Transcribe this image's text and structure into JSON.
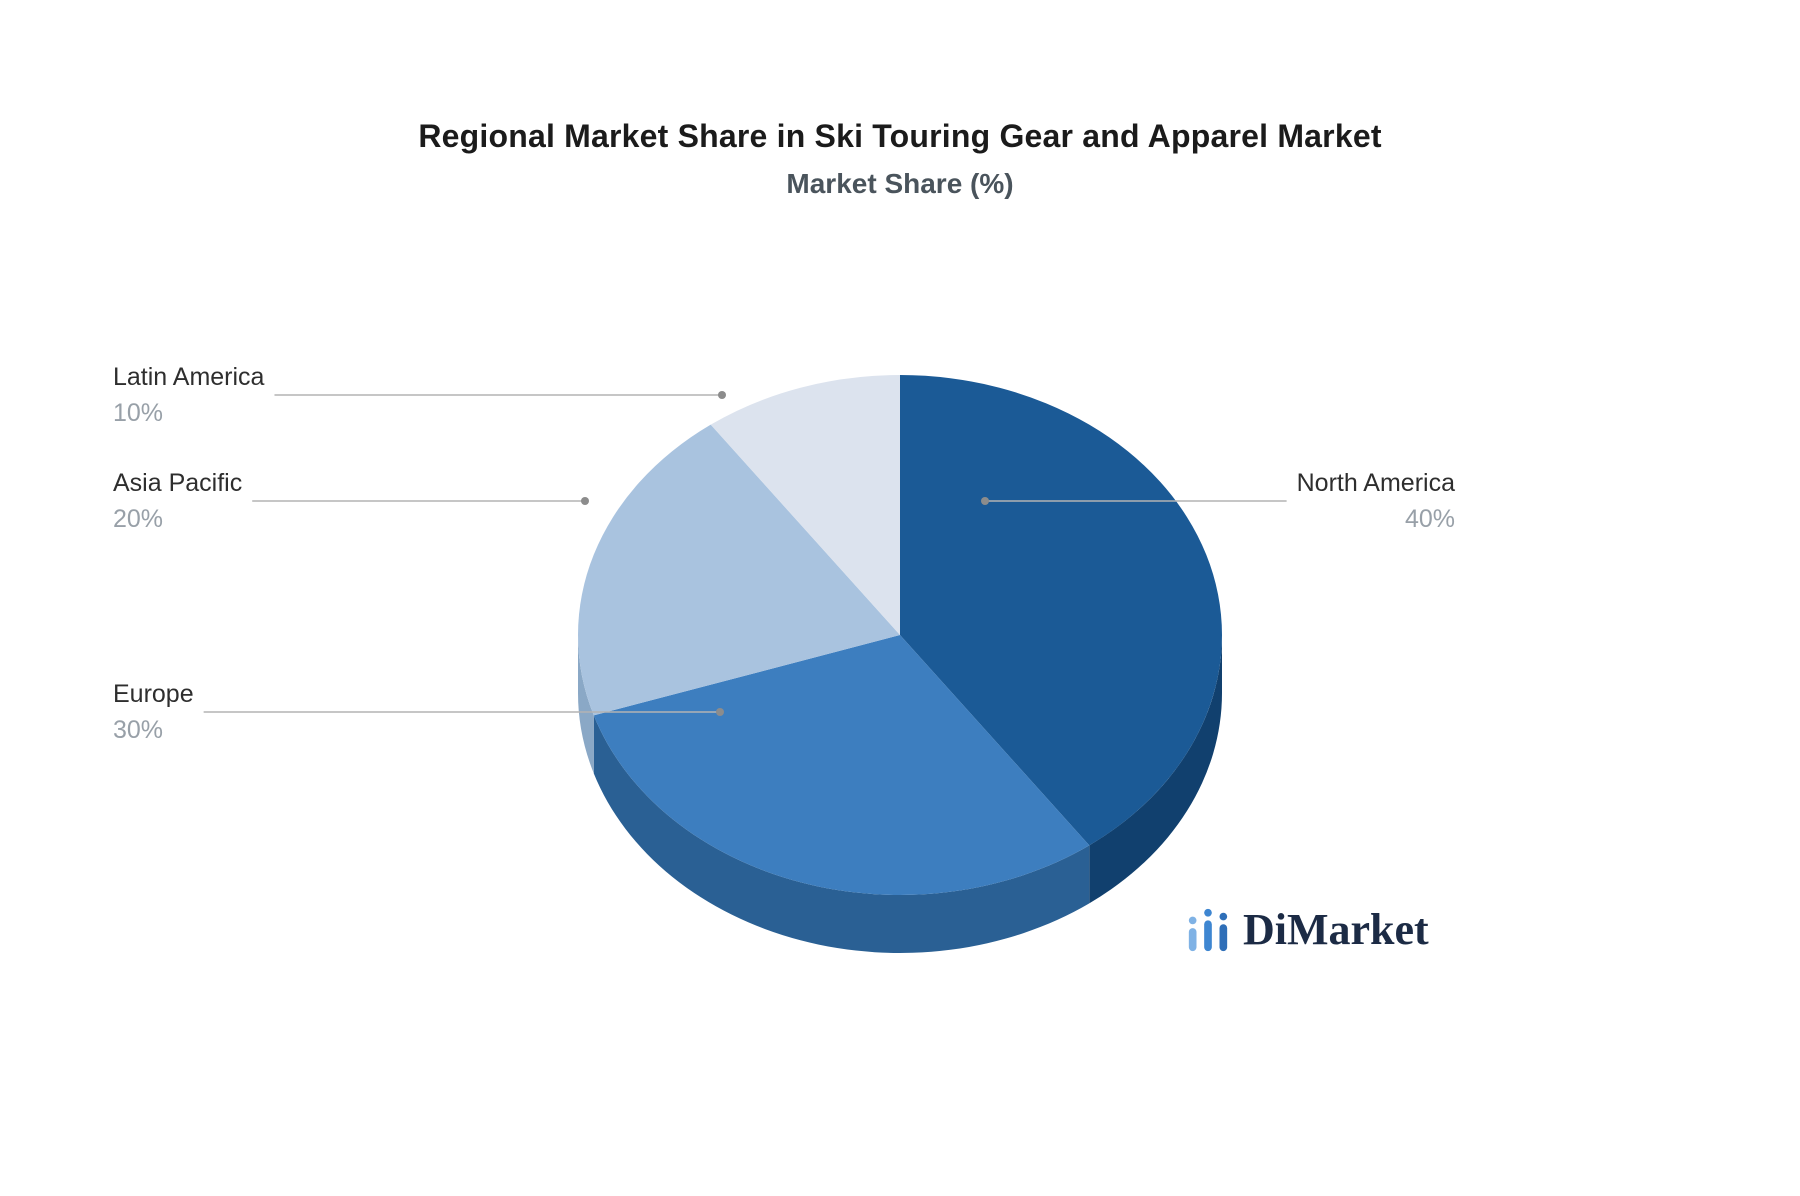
{
  "chart_data": {
    "type": "pie",
    "title": "Regional Market Share in Ski Touring Gear and Apparel Market",
    "subtitle": "Market Share (%)",
    "unit": "%",
    "start_angle_deg": -90,
    "direction": "clockwise",
    "legend_position": "none",
    "label_style": "callout labels with leader lines, name above percent",
    "slices": [
      {
        "label": "North America",
        "value": 40,
        "color": "#1B5A96",
        "side_color": "#11406E",
        "label_side": "right"
      },
      {
        "label": "Europe",
        "value": 30,
        "color": "#3D7EBF",
        "side_color": "#2A6094",
        "label_side": "left"
      },
      {
        "label": "Asia Pacific",
        "value": 20,
        "color": "#A9C3DF",
        "side_color": "#8AA8C6",
        "label_side": "left"
      },
      {
        "label": "Latin America",
        "value": 10,
        "color": "#DCE3EE",
        "side_color": "#BCC8D9",
        "label_side": "left"
      }
    ]
  },
  "logo": {
    "brand": "DiMarket",
    "icon": "bar-chart-icon"
  }
}
